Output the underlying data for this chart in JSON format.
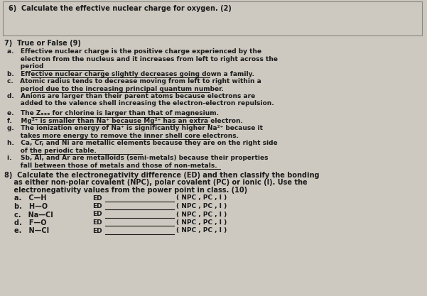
{
  "bg_color": "#cdc9c0",
  "box_bg": "#cdc9c0",
  "box_edge": "#888880",
  "text_color": "#1a1a1a",
  "box_title": "6)  Calculate the effective nuclear charge for oxygen. (2)",
  "s7_title": "7)  True or False (9)",
  "s7_a1": "a.   Effective nuclear charge is the positive charge experienced by the",
  "s7_a2": "      electron from the nucleus and it increases from left to right across the",
  "s7_a3": "      period",
  "s7_b": "b.   Effective nuclear charge slightly decreases going down a family.",
  "s7_c1": "c.   Atomic radius tends to decrease moving from left to right within a",
  "s7_c2": "      period due to the increasing principal quantum number.",
  "s7_d1": "d.   Anions are larger than their parent atoms because electrons are",
  "s7_d2": "      added to the valence shell increasing the electron-electron repulsion.",
  "s7_e": "e.   The Zₑₑₑ for chlorine is larger than that of magnesium.",
  "s7_f": "f.    Mg²⁺ is smaller than Na⁺ because Mg²⁺ has an extra electron.",
  "s7_g1": "g.   The ionization energy of Na⁺ is significantly higher Na²⁺ because it",
  "s7_g2": "      takes more energy to remove the inner shell core electrons.",
  "s7_h1": "h.   Ca, Cr, and Ni are metallic elements because they are on the right side",
  "s7_h2": "      of the periodic table.",
  "s7_i1": "i.    Sb, Al, and Ar are metalloids (semi-metals) because their properties",
  "s7_i2": "      fall between those of metals and those of non-metals.",
  "s8_line1": "8)  Calculate the electronegativity difference (ED) and then classify the bonding",
  "s8_line2": "    as either non-polar covalent (NPC), polar covalent (PC) or ionic (I). Use the",
  "s8_line3": "    electronegativity values from the power point in class. (10)",
  "bonds": [
    "a.   C—H",
    "b.   H—O",
    "c.   Na—Cl",
    "d.   F—O",
    "e.   N—Cl"
  ],
  "npc_pc_i_list": [
    "( NPC , PC , I )",
    "( NPC , PC , I )",
    "( NPC , PC , I )",
    "( NPC , PC , I )",
    "( NPC , PC , I )"
  ],
  "fs": 6.5,
  "fs_title": 7.0,
  "lh": 10.5
}
